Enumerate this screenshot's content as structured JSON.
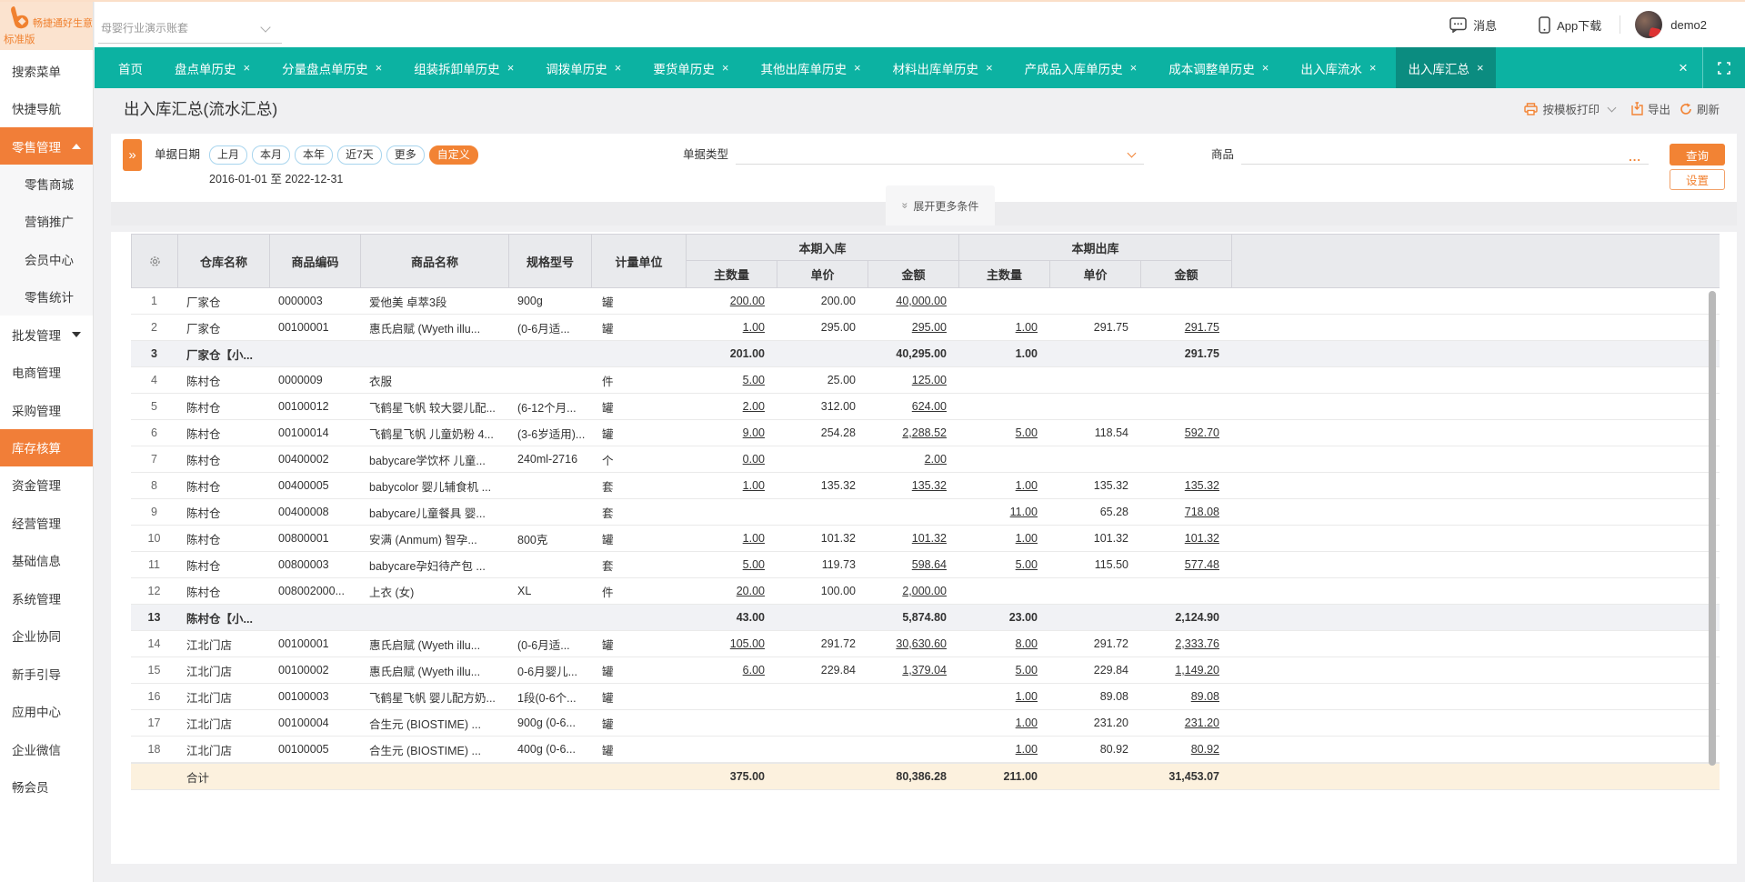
{
  "brand": {
    "name": "畅捷通好生意",
    "edition": "标准版"
  },
  "topbar": {
    "account": "母婴行业演示账套",
    "messages": "消息",
    "app_download": "App下载",
    "username": "demo2"
  },
  "tabs": [
    {
      "label": "首页",
      "closable": false,
      "active": false
    },
    {
      "label": "盘点单历史",
      "closable": true,
      "active": false
    },
    {
      "label": "分量盘点单历史",
      "closable": true,
      "active": false
    },
    {
      "label": "组装拆卸单历史",
      "closable": true,
      "active": false
    },
    {
      "label": "调拨单历史",
      "closable": true,
      "active": false
    },
    {
      "label": "要货单历史",
      "closable": true,
      "active": false
    },
    {
      "label": "其他出库单历史",
      "closable": true,
      "active": false
    },
    {
      "label": "材料出库单历史",
      "closable": true,
      "active": false
    },
    {
      "label": "产成品入库单历史",
      "closable": true,
      "active": false
    },
    {
      "label": "成本调整单历史",
      "closable": true,
      "active": false
    },
    {
      "label": "出入库流水",
      "closable": true,
      "active": false
    },
    {
      "label": "出入库汇总",
      "closable": true,
      "active": true
    }
  ],
  "sidebar": [
    {
      "label": "搜索菜单",
      "type": "item"
    },
    {
      "label": "快捷导航",
      "type": "item"
    },
    {
      "label": "零售管理",
      "type": "item",
      "active": true,
      "arrow": "up"
    },
    {
      "label": "零售商城",
      "type": "sub"
    },
    {
      "label": "营销推广",
      "type": "sub"
    },
    {
      "label": "会员中心",
      "type": "sub"
    },
    {
      "label": "零售统计",
      "type": "sub"
    },
    {
      "label": "批发管理",
      "type": "item",
      "arrow": "down"
    },
    {
      "label": "电商管理",
      "type": "item"
    },
    {
      "label": "采购管理",
      "type": "item"
    },
    {
      "label": "库存核算",
      "type": "item",
      "active": true
    },
    {
      "label": "资金管理",
      "type": "item"
    },
    {
      "label": "经营管理",
      "type": "item"
    },
    {
      "label": "基础信息",
      "type": "item"
    },
    {
      "label": "系统管理",
      "type": "item"
    },
    {
      "label": "企业协同",
      "type": "item"
    },
    {
      "label": "新手引导",
      "type": "item"
    },
    {
      "label": "应用中心",
      "type": "item"
    },
    {
      "label": "企业微信",
      "type": "item"
    },
    {
      "label": "畅会员",
      "type": "item"
    }
  ],
  "page": {
    "title": "出入库汇总(流水汇总)",
    "print_label": "按模板打印",
    "export_label": "导出",
    "refresh_label": "刷新"
  },
  "filters": {
    "date_label": "单据日期",
    "presets": [
      "上月",
      "本月",
      "本年",
      "近7天",
      "更多"
    ],
    "custom_label": "自定义",
    "range": "2016-01-01 至 2022-12-31",
    "doctype_label": "单据类型",
    "product_label": "商品",
    "dots": "...",
    "query_label": "查询",
    "settings_label": "设置",
    "expand_label": "展开更多条件"
  },
  "table": {
    "columns": {
      "warehouse": "仓库名称",
      "code": "商品编码",
      "name": "商品名称",
      "spec": "规格型号",
      "unit": "计量单位"
    },
    "group_in": "本期入库",
    "group_out": "本期出库",
    "sub_columns": [
      "主数量",
      "单价",
      "金额"
    ],
    "rows": [
      {
        "no": "1",
        "wh": "厂家仓",
        "code": "0000003",
        "name": "爱他美 卓萃3段",
        "spec": "900g",
        "unit": "罐",
        "iq": "200.00",
        "ip": "200.00",
        "ia": "40,000.00",
        "oq": "",
        "op": "",
        "oa": ""
      },
      {
        "no": "2",
        "wh": "厂家仓",
        "code": "00100001",
        "name": "惠氏启赋 (Wyeth illu...",
        "spec": "(0-6月适...",
        "unit": "罐",
        "iq": "1.00",
        "ip": "295.00",
        "ia": "295.00",
        "oq": "1.00",
        "op": "291.75",
        "oa": "291.75"
      },
      {
        "no": "3",
        "wh": "厂家仓【小...",
        "subtotal": true,
        "code": "",
        "name": "",
        "spec": "",
        "unit": "",
        "iq": "201.00",
        "ip": "",
        "ia": "40,295.00",
        "oq": "1.00",
        "op": "",
        "oa": "291.75"
      },
      {
        "no": "4",
        "wh": "陈村仓",
        "code": "0000009",
        "name": "衣服",
        "spec": "",
        "unit": "件",
        "iq": "5.00",
        "ip": "25.00",
        "ia": "125.00",
        "oq": "",
        "op": "",
        "oa": ""
      },
      {
        "no": "5",
        "wh": "陈村仓",
        "code": "00100012",
        "name": "飞鹤星飞帆 较大婴儿配...",
        "spec": "(6-12个月...",
        "unit": "罐",
        "iq": "2.00",
        "ip": "312.00",
        "ia": "624.00",
        "oq": "",
        "op": "",
        "oa": ""
      },
      {
        "no": "6",
        "wh": "陈村仓",
        "code": "00100014",
        "name": "飞鹤星飞帆 儿童奶粉 4...",
        "spec": "(3-6岁适用)...",
        "unit": "罐",
        "iq": "9.00",
        "ip": "254.28",
        "ia": "2,288.52",
        "oq": "5.00",
        "op": "118.54",
        "oa": "592.70"
      },
      {
        "no": "7",
        "wh": "陈村仓",
        "code": "00400002",
        "name": "babycare学饮杯 儿童...",
        "spec": "240ml-2716",
        "unit": "个",
        "iq": "0.00",
        "ip": "",
        "ia": "2.00",
        "oq": "",
        "op": "",
        "oa": ""
      },
      {
        "no": "8",
        "wh": "陈村仓",
        "code": "00400005",
        "name": "babycolor 婴儿辅食机 ...",
        "spec": "",
        "unit": "套",
        "iq": "1.00",
        "ip": "135.32",
        "ia": "135.32",
        "oq": "1.00",
        "op": "135.32",
        "oa": "135.32"
      },
      {
        "no": "9",
        "wh": "陈村仓",
        "code": "00400008",
        "name": "babycare儿童餐具 婴...",
        "spec": "",
        "unit": "套",
        "iq": "",
        "ip": "",
        "ia": "",
        "oq": "11.00",
        "op": "65.28",
        "oa": "718.08"
      },
      {
        "no": "10",
        "wh": "陈村仓",
        "code": "00800001",
        "name": "安满 (Anmum) 智孕...",
        "spec": "800克",
        "unit": "罐",
        "iq": "1.00",
        "ip": "101.32",
        "ia": "101.32",
        "oq": "1.00",
        "op": "101.32",
        "oa": "101.32"
      },
      {
        "no": "11",
        "wh": "陈村仓",
        "code": "00800003",
        "name": "babycare孕妇待产包 ...",
        "spec": "",
        "unit": "套",
        "iq": "5.00",
        "ip": "119.73",
        "ia": "598.64",
        "oq": "5.00",
        "op": "115.50",
        "oa": "577.48"
      },
      {
        "no": "12",
        "wh": "陈村仓",
        "code": "008002000...",
        "name": "上衣 (女)",
        "spec": "XL",
        "unit": "件",
        "iq": "20.00",
        "ip": "100.00",
        "ia": "2,000.00",
        "oq": "",
        "op": "",
        "oa": ""
      },
      {
        "no": "13",
        "wh": "陈村仓【小...",
        "subtotal": true,
        "code": "",
        "name": "",
        "spec": "",
        "unit": "",
        "iq": "43.00",
        "ip": "",
        "ia": "5,874.80",
        "oq": "23.00",
        "op": "",
        "oa": "2,124.90"
      },
      {
        "no": "14",
        "wh": "江北门店",
        "code": "00100001",
        "name": "惠氏启赋 (Wyeth illu...",
        "spec": "(0-6月适...",
        "unit": "罐",
        "iq": "105.00",
        "ip": "291.72",
        "ia": "30,630.60",
        "oq": "8.00",
        "op": "291.72",
        "oa": "2,333.76"
      },
      {
        "no": "15",
        "wh": "江北门店",
        "code": "00100002",
        "name": "惠氏启赋 (Wyeth illu...",
        "spec": "0-6月婴儿...",
        "unit": "罐",
        "iq": "6.00",
        "ip": "229.84",
        "ia": "1,379.04",
        "oq": "5.00",
        "op": "229.84",
        "oa": "1,149.20"
      },
      {
        "no": "16",
        "wh": "江北门店",
        "code": "00100003",
        "name": "飞鹤星飞帆 婴儿配方奶...",
        "spec": "1段(0-6个...",
        "unit": "罐",
        "iq": "",
        "ip": "",
        "ia": "",
        "oq": "1.00",
        "op": "89.08",
        "oa": "89.08"
      },
      {
        "no": "17",
        "wh": "江北门店",
        "code": "00100004",
        "name": "合生元 (BIOSTIME) ...",
        "spec": "900g (0-6...",
        "unit": "罐",
        "iq": "",
        "ip": "",
        "ia": "",
        "oq": "1.00",
        "op": "231.20",
        "oa": "231.20"
      },
      {
        "no": "18",
        "wh": "江北门店",
        "code": "00100005",
        "name": "合生元 (BIOSTIME) ...",
        "spec": "400g (0-6...",
        "unit": "罐",
        "iq": "",
        "ip": "",
        "ia": "",
        "oq": "1.00",
        "op": "80.92",
        "oa": "80.92"
      }
    ],
    "total": {
      "label": "合计",
      "iq": "375.00",
      "ia": "80,386.28",
      "oq": "211.00",
      "oa": "31,453.07"
    }
  },
  "colors": {
    "teal": "#0cb2a2",
    "teal_dark": "#0b8c80",
    "orange": "#f28334",
    "total_bg": "#fcf1de",
    "subtotal_bg": "#f1f2f5"
  }
}
